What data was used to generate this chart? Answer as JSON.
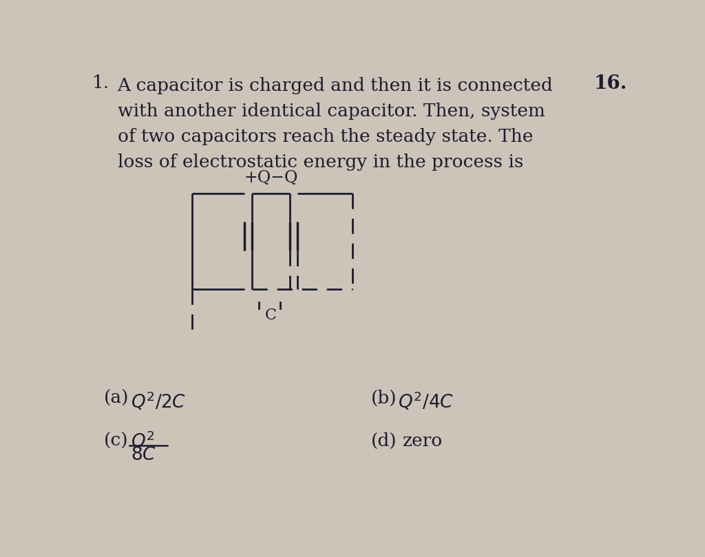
{
  "bg_color": "#ccc4b8",
  "text_color": "#1c1c2e",
  "question_number": "1.",
  "question_text_lines": [
    "A capacitor is charged and then it is connected",
    "with another identical capacitor. Then, system",
    "of two capacitors reach the steady state. The",
    "loss of electrostatic energy in the process is"
  ],
  "number_label": "16.",
  "circuit_label_top": "+Q−Q",
  "circuit_label_bottom": "C",
  "font_size_question": 19,
  "font_size_options": 19,
  "font_size_circuit": 16,
  "font_size_number": 20,
  "opt_a_label": "(a)",
  "opt_a_text": "Q²/2C",
  "opt_b_label": "(b)",
  "opt_b_text": "Q²/4C",
  "opt_c_label": "(c)",
  "opt_c_num": "Q²",
  "opt_c_den": "8C",
  "opt_d_label": "(d)",
  "opt_d_text": "zero"
}
